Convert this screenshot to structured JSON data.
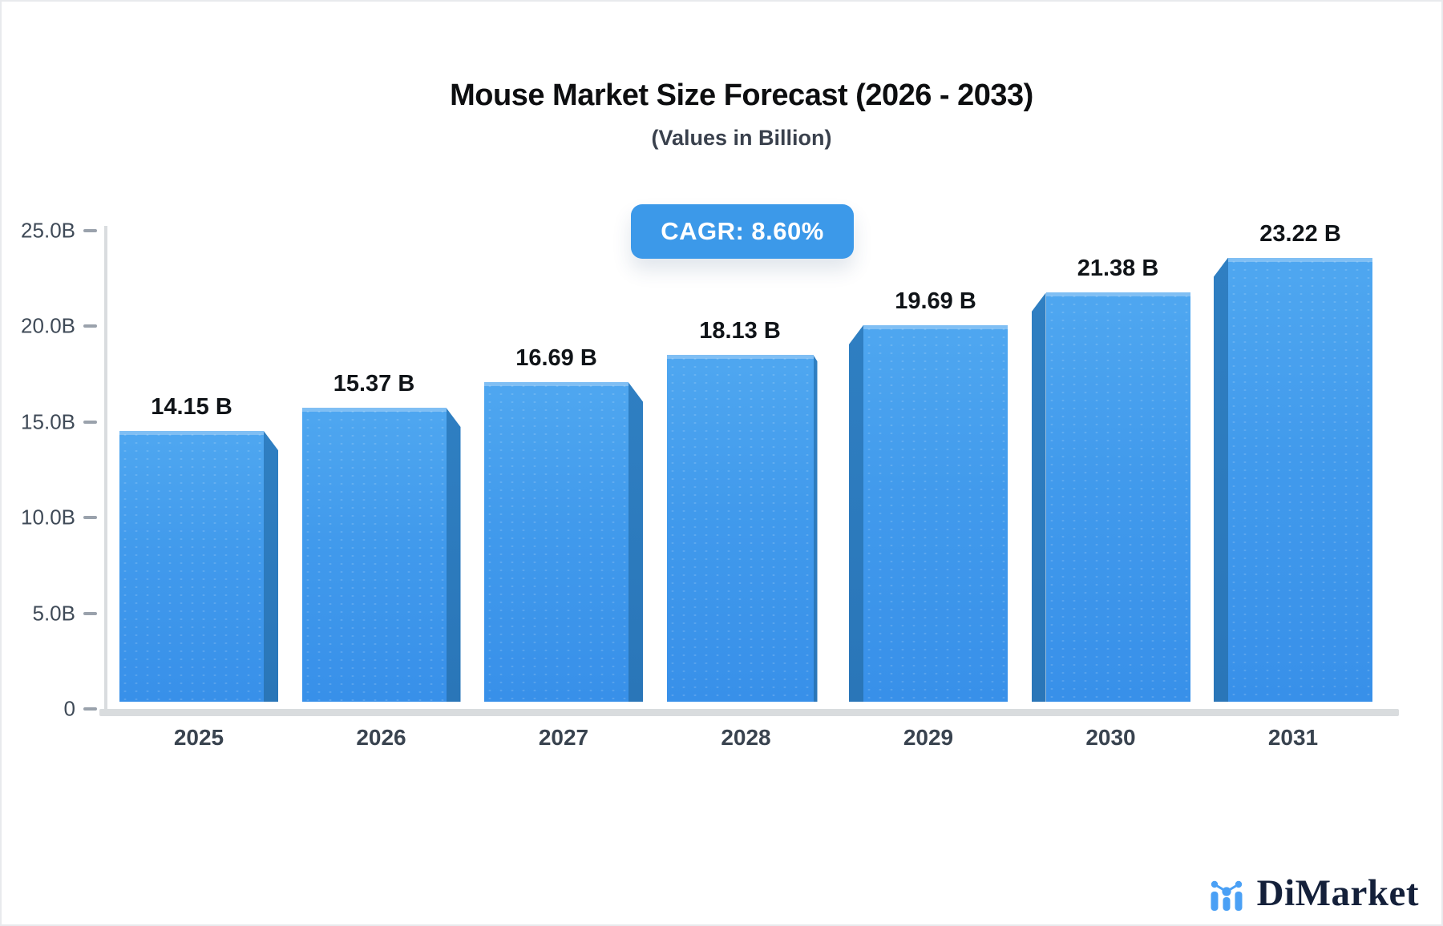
{
  "header": {
    "title": "Mouse Market Size Forecast (2026 - 2033)",
    "subtitle": "(Values in Billion)",
    "cagr_label": "CAGR: 8.60%"
  },
  "chart_data": {
    "type": "bar",
    "title": "Mouse Market Size Forecast (2026 - 2033)",
    "subtitle": "(Values in Billion)",
    "unit": "Billion",
    "cagr": "8.60%",
    "categories": [
      "2025",
      "2026",
      "2027",
      "2028",
      "2029",
      "2030",
      "2031"
    ],
    "values": [
      14.15,
      15.37,
      16.69,
      18.13,
      19.69,
      21.38,
      23.22
    ],
    "value_labels": [
      "14.15 B",
      "15.37 B",
      "16.69 B",
      "18.13 B",
      "19.69 B",
      "21.38 B",
      "23.22 B"
    ],
    "ylim": [
      0,
      25
    ],
    "y_ticks": [
      "0",
      "5.0B",
      "10.0B",
      "15.0B",
      "20.0B",
      "25.0B"
    ],
    "grid": false,
    "legend": false,
    "bar_color": "#3f9bec",
    "bar_side_color": "#2a76b8",
    "badge_color": "#3c99e9"
  },
  "branding": {
    "logo_text": "DiMarket",
    "logo_icon": "mini-bar-chart-icon",
    "logo_text_color": "#14203a",
    "logo_icon_color": "#4aa0f5"
  }
}
